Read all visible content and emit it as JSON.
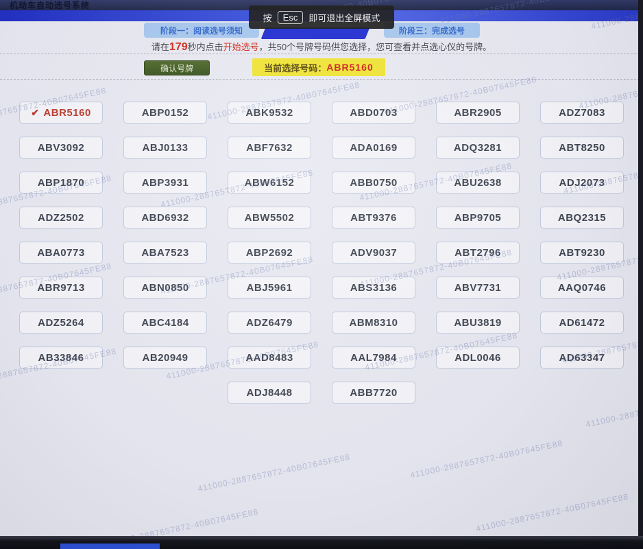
{
  "header": {
    "title": "机动车自动选号系统"
  },
  "toast": {
    "press": "按",
    "key": "Esc",
    "suffix": "即可退出全屏模式"
  },
  "stages": {
    "stage1_label": "阶段一：阅读选号须知",
    "stage3_label": "阶段三：完成选号"
  },
  "instruction": {
    "part1": "请在",
    "seconds": "179",
    "part2": "秒内点击",
    "start_link": "开始选号",
    "part3": "，共50个号牌号码供您选择，您可查看并点选心仪的号牌。"
  },
  "actions": {
    "confirm_label": "确认号牌",
    "selection_label": "当前选择号码：",
    "selection_value": "ABR5160"
  },
  "plates": {
    "selected": "ABR5160",
    "check_glyph": "✔",
    "list": [
      "ABR5160",
      "ABP0152",
      "ABK9532",
      "ABD0703",
      "ABR2905",
      "ADZ7083",
      "ABV3092",
      "ABJ0133",
      "ABF7632",
      "ADA0169",
      "ADQ3281",
      "ABT8250",
      "ABP1870",
      "ABP3931",
      "ABW6152",
      "ABB0750",
      "ABU2638",
      "ADJ2073",
      "ADZ2502",
      "ABD6932",
      "ABW5502",
      "ABT9376",
      "ABP9705",
      "ABQ2315",
      "ABA0773",
      "ABA7523",
      "ABP2692",
      "ADV9037",
      "ABT2796",
      "ABT9230",
      "ABR9713",
      "ABN0850",
      "ABJ5961",
      "ABS3136",
      "ABV7731",
      "AAQ0746",
      "ADZ5264",
      "ABC4184",
      "ADZ6479",
      "ABM8310",
      "ABU3819",
      "AD61472",
      "AB33846",
      "AB20949",
      "AAD8483",
      "AAL7984",
      "ADL0046",
      "AD63347",
      "ADJ8448",
      "ABB7720"
    ]
  },
  "watermark": {
    "text": "411000-2887657872-40B07645FE88"
  }
}
